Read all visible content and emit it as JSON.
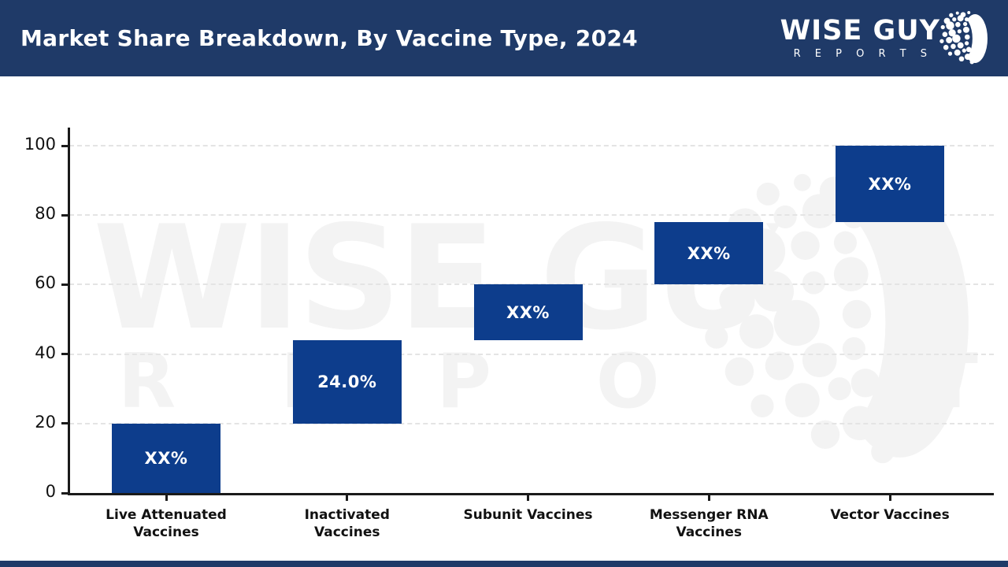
{
  "header": {
    "title": "Market Share Breakdown, By Vaccine Type, 2024",
    "logo_line1": "WISE GUY",
    "logo_line2": "R E P O R T S"
  },
  "watermark": {
    "line1": "WISE GUY",
    "line2": "R E P O R T S"
  },
  "colors": {
    "header_bg": "#1f3a68",
    "footer_bg": "#1f3a68",
    "bar": "#0d3d8c",
    "grid": "#e4e4e4",
    "axis": "#1a1a1a",
    "watermark": "#f3f3f3"
  },
  "chart_data": {
    "type": "bar",
    "subtype": "waterfall",
    "title": "Market Share Breakdown, By Vaccine Type, 2024",
    "categories": [
      "Live Attenuated\nVaccines",
      "Inactivated\nVaccines",
      "Subunit Vaccines",
      "Messenger RNA\nVaccines",
      "Vector Vaccines"
    ],
    "segments": [
      {
        "category": "Live Attenuated Vaccines",
        "start": 0,
        "end": 20,
        "value": 20,
        "value_label": "XX%"
      },
      {
        "category": "Inactivated Vaccines",
        "start": 20,
        "end": 44,
        "value": 24,
        "value_label": "24.0%"
      },
      {
        "category": "Subunit Vaccines",
        "start": 44,
        "end": 60,
        "value": 16,
        "value_label": "XX%"
      },
      {
        "category": "Messenger RNA Vaccines",
        "start": 60,
        "end": 78,
        "value": 18,
        "value_label": "XX%"
      },
      {
        "category": "Vector Vaccines",
        "start": 78,
        "end": 100,
        "value": 22,
        "value_label": "XX%"
      }
    ],
    "y_ticks": [
      0,
      20,
      40,
      60,
      80,
      100
    ],
    "ylim": [
      0,
      106
    ],
    "xlabel": "",
    "ylabel": "",
    "grid": "horizontal-dashed",
    "legend": "none"
  }
}
